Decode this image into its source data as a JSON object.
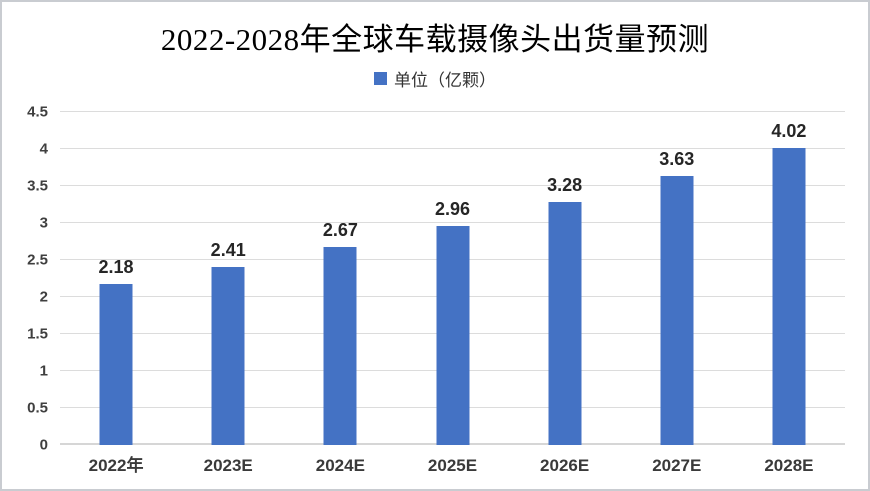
{
  "chart_data": {
    "type": "bar",
    "title": "2022-2028年全球车载摄像头出货量预测",
    "legend": {
      "label": "单位（亿颗）",
      "position": "top",
      "swatch_color": "#4472c4"
    },
    "categories": [
      "2022年",
      "2023E",
      "2024E",
      "2025E",
      "2026E",
      "2027E",
      "2028E"
    ],
    "values": [
      2.18,
      2.41,
      2.67,
      2.96,
      3.28,
      3.63,
      4.02
    ],
    "value_labels": [
      "2.18",
      "2.41",
      "2.67",
      "2.96",
      "3.28",
      "3.63",
      "4.02"
    ],
    "xlabel": "",
    "ylabel": "",
    "ylim": [
      0,
      4.5
    ],
    "ytick_step": 0.5,
    "yticks": [
      "0",
      "0.5",
      "1",
      "1.5",
      "2",
      "2.5",
      "3",
      "3.5",
      "4",
      "4.5"
    ],
    "grid": true,
    "colors": {
      "bar": "#4472c4",
      "gridline": "#dcdcdc",
      "axis_text": "#3f3f3f",
      "data_label_text": "#262626",
      "title_text": "#000000",
      "figure_border": "#c9ccd1",
      "background": "#ffffff"
    }
  }
}
